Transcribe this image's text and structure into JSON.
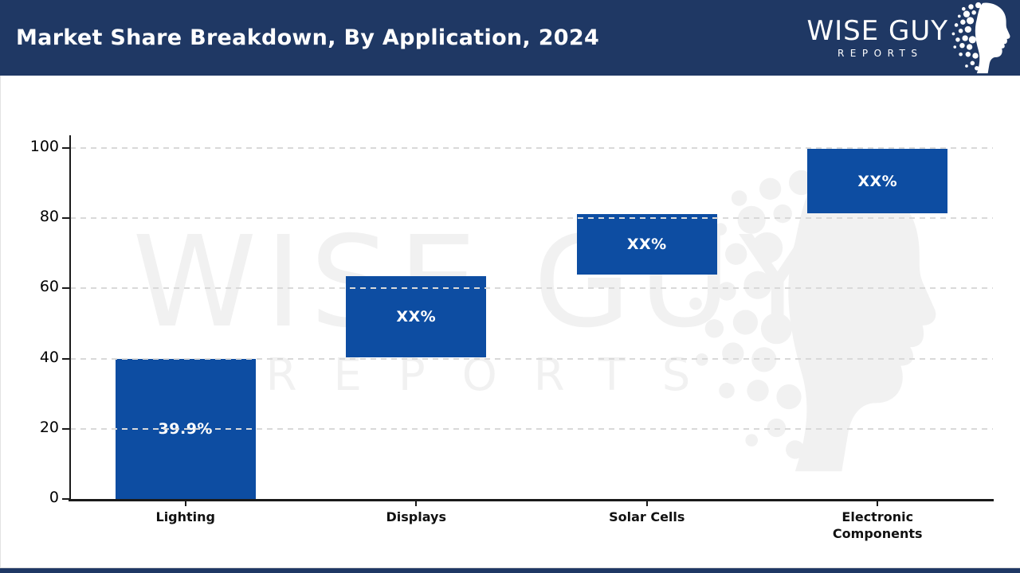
{
  "header": {
    "title": "Market Share Breakdown, By Application, 2024",
    "bg_color": "#1f3864",
    "logo": {
      "line1": "WISE GUY",
      "line2": "REPORTS"
    }
  },
  "watermark": {
    "line1": "WISE GUY",
    "line2": "REPORTS",
    "color": "#f1f1f1"
  },
  "chart_data": {
    "type": "bar",
    "subtype": "waterfall",
    "title": "Market Share Breakdown, By Application, 2024",
    "categories": [
      "Lighting",
      "Displays",
      "Solar Cells",
      "Electronic Components"
    ],
    "segments": [
      {
        "category": "Lighting",
        "start": 0,
        "end": 39.9,
        "label": "39.9%"
      },
      {
        "category": "Displays",
        "start": 40.3,
        "end": 63.5,
        "label": "XX%"
      },
      {
        "category": "Solar Cells",
        "start": 64.0,
        "end": 81.2,
        "label": "XX%"
      },
      {
        "category": "Electronic Components",
        "start": 81.3,
        "end": 99.8,
        "label": "XX%"
      }
    ],
    "xlabel": "",
    "ylabel": "",
    "ylim": [
      0,
      100
    ],
    "yticks": [
      0,
      20,
      40,
      60,
      80,
      100
    ],
    "grid": "horizontal dashed, drawn over bars",
    "legend": null,
    "bar_color": "#0d4da2",
    "bar_label_color": "#ffffff",
    "axis_color": "#1a1a1a",
    "grid_color": "#d9d9d9"
  }
}
